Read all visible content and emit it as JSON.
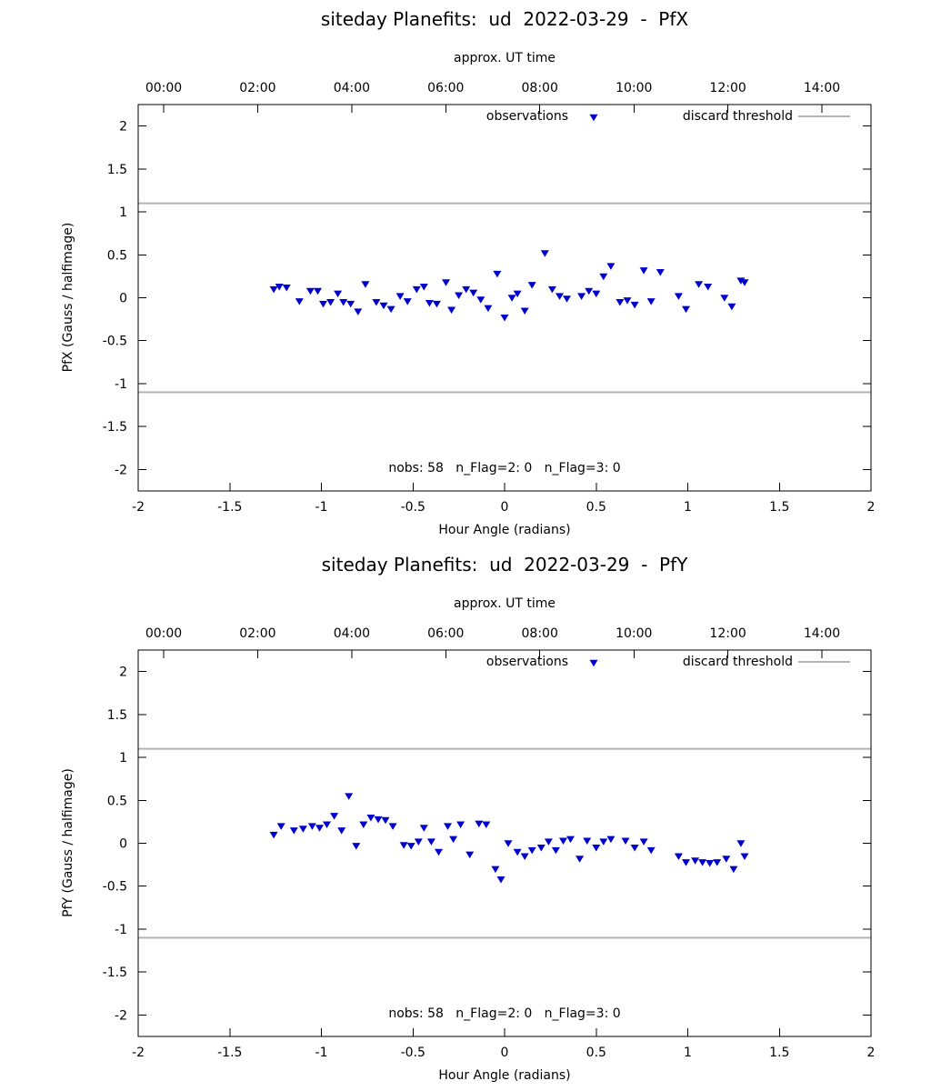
{
  "chart_data": [
    {
      "type": "scatter",
      "title": "siteday Planefits:  ud  2022-03-29  -  PfX",
      "top_axis_label": "approx. UT time",
      "xlabel": "Hour Angle (radians)",
      "ylabel": "PfX (Gauss / halfimage)",
      "legend": {
        "observations_label": "observations",
        "threshold_label": "discard threshold",
        "position": "top-right-inside"
      },
      "stats_text": "nobs: 58   n_Flag=2: 0   n_Flag=3: 0",
      "nobs": 58,
      "n_flag2": 0,
      "n_flag3": 0,
      "xlim": [
        -2,
        2
      ],
      "ylim": [
        -2.25,
        2.25
      ],
      "x_ticks": [
        -2,
        -1.5,
        -1,
        -0.5,
        0,
        0.5,
        1,
        1.5,
        2
      ],
      "y_ticks": [
        -2,
        -1.5,
        -1,
        -0.5,
        0,
        0.5,
        1,
        1.5,
        2
      ],
      "top_ticks": [
        {
          "label": "00:00",
          "x": -1.861
        },
        {
          "label": "02:00",
          "x": -1.348
        },
        {
          "label": "04:00",
          "x": -0.834
        },
        {
          "label": "06:00",
          "x": -0.321
        },
        {
          "label": "08:00",
          "x": 0.192
        },
        {
          "label": "10:00",
          "x": 0.706
        },
        {
          "label": "12:00",
          "x": 1.219
        },
        {
          "label": "14:00",
          "x": 1.732
        }
      ],
      "thresholds": [
        1.1,
        -1.1
      ],
      "marker_color": "#0000cd",
      "threshold_color": "#b3b3b3",
      "points": [
        [
          -1.26,
          0.1
        ],
        [
          -1.23,
          0.13
        ],
        [
          -1.19,
          0.12
        ],
        [
          -1.12,
          -0.04
        ],
        [
          -1.06,
          0.08
        ],
        [
          -1.02,
          0.08
        ],
        [
          -0.99,
          -0.07
        ],
        [
          -0.95,
          -0.05
        ],
        [
          -0.91,
          0.05
        ],
        [
          -0.88,
          -0.05
        ],
        [
          -0.84,
          -0.07
        ],
        [
          -0.8,
          -0.16
        ],
        [
          -0.76,
          0.16
        ],
        [
          -0.7,
          -0.05
        ],
        [
          -0.66,
          -0.09
        ],
        [
          -0.62,
          -0.13
        ],
        [
          -0.57,
          0.02
        ],
        [
          -0.53,
          -0.04
        ],
        [
          -0.48,
          0.1
        ],
        [
          -0.44,
          0.13
        ],
        [
          -0.41,
          -0.06
        ],
        [
          -0.37,
          -0.07
        ],
        [
          -0.32,
          0.18
        ],
        [
          -0.29,
          -0.14
        ],
        [
          -0.25,
          0.03
        ],
        [
          -0.21,
          0.1
        ],
        [
          -0.17,
          0.06
        ],
        [
          -0.13,
          -0.02
        ],
        [
          -0.09,
          -0.12
        ],
        [
          -0.04,
          0.28
        ],
        [
          0.0,
          -0.23
        ],
        [
          0.04,
          0.0
        ],
        [
          0.07,
          0.05
        ],
        [
          0.11,
          -0.15
        ],
        [
          0.15,
          0.15
        ],
        [
          0.22,
          0.52
        ],
        [
          0.26,
          0.1
        ],
        [
          0.3,
          0.02
        ],
        [
          0.34,
          -0.01
        ],
        [
          0.42,
          0.02
        ],
        [
          0.46,
          0.08
        ],
        [
          0.5,
          0.05
        ],
        [
          0.54,
          0.25
        ],
        [
          0.58,
          0.37
        ],
        [
          0.63,
          -0.05
        ],
        [
          0.67,
          -0.03
        ],
        [
          0.71,
          -0.08
        ],
        [
          0.76,
          0.32
        ],
        [
          0.8,
          -0.04
        ],
        [
          0.85,
          0.3
        ],
        [
          0.95,
          0.02
        ],
        [
          0.99,
          -0.13
        ],
        [
          1.06,
          0.16
        ],
        [
          1.11,
          0.13
        ],
        [
          1.2,
          0.0
        ],
        [
          1.24,
          -0.1
        ],
        [
          1.29,
          0.2
        ],
        [
          1.31,
          0.18
        ]
      ]
    },
    {
      "type": "scatter",
      "title": "siteday Planefits:  ud  2022-03-29  -  PfY",
      "top_axis_label": "approx. UT time",
      "xlabel": "Hour Angle (radians)",
      "ylabel": "PfY (Gauss / halfimage)",
      "legend": {
        "observations_label": "observations",
        "threshold_label": "discard threshold",
        "position": "top-right-inside"
      },
      "stats_text": "nobs: 58   n_Flag=2: 0   n_Flag=3: 0",
      "nobs": 58,
      "n_flag2": 0,
      "n_flag3": 0,
      "xlim": [
        -2,
        2
      ],
      "ylim": [
        -2.25,
        2.25
      ],
      "x_ticks": [
        -2,
        -1.5,
        -1,
        -0.5,
        0,
        0.5,
        1,
        1.5,
        2
      ],
      "y_ticks": [
        -2,
        -1.5,
        -1,
        -0.5,
        0,
        0.5,
        1,
        1.5,
        2
      ],
      "top_ticks": [
        {
          "label": "00:00",
          "x": -1.861
        },
        {
          "label": "02:00",
          "x": -1.348
        },
        {
          "label": "04:00",
          "x": -0.834
        },
        {
          "label": "06:00",
          "x": -0.321
        },
        {
          "label": "08:00",
          "x": 0.192
        },
        {
          "label": "10:00",
          "x": 0.706
        },
        {
          "label": "12:00",
          "x": 1.219
        },
        {
          "label": "14:00",
          "x": 1.732
        }
      ],
      "thresholds": [
        1.1,
        -1.1
      ],
      "marker_color": "#0000cd",
      "threshold_color": "#b3b3b3",
      "points": [
        [
          -1.26,
          0.1
        ],
        [
          -1.22,
          0.2
        ],
        [
          -1.15,
          0.15
        ],
        [
          -1.1,
          0.17
        ],
        [
          -1.05,
          0.2
        ],
        [
          -1.01,
          0.18
        ],
        [
          -0.97,
          0.22
        ],
        [
          -0.93,
          0.32
        ],
        [
          -0.89,
          0.15
        ],
        [
          -0.85,
          0.55
        ],
        [
          -0.81,
          -0.03
        ],
        [
          -0.77,
          0.22
        ],
        [
          -0.73,
          0.3
        ],
        [
          -0.69,
          0.28
        ],
        [
          -0.65,
          0.27
        ],
        [
          -0.61,
          0.2
        ],
        [
          -0.55,
          -0.02
        ],
        [
          -0.51,
          -0.03
        ],
        [
          -0.47,
          0.02
        ],
        [
          -0.44,
          0.18
        ],
        [
          -0.4,
          0.02
        ],
        [
          -0.36,
          -0.1
        ],
        [
          -0.31,
          0.2
        ],
        [
          -0.28,
          0.05
        ],
        [
          -0.24,
          0.22
        ],
        [
          -0.19,
          -0.13
        ],
        [
          -0.14,
          0.23
        ],
        [
          -0.1,
          0.22
        ],
        [
          -0.05,
          -0.3
        ],
        [
          -0.02,
          -0.42
        ],
        [
          0.02,
          0.0
        ],
        [
          0.07,
          -0.1
        ],
        [
          0.11,
          -0.15
        ],
        [
          0.15,
          -0.08
        ],
        [
          0.2,
          -0.05
        ],
        [
          0.24,
          0.02
        ],
        [
          0.28,
          -0.08
        ],
        [
          0.32,
          0.03
        ],
        [
          0.36,
          0.05
        ],
        [
          0.41,
          -0.18
        ],
        [
          0.45,
          0.03
        ],
        [
          0.5,
          -0.05
        ],
        [
          0.54,
          0.02
        ],
        [
          0.58,
          0.05
        ],
        [
          0.66,
          0.03
        ],
        [
          0.71,
          -0.05
        ],
        [
          0.76,
          0.02
        ],
        [
          0.8,
          -0.08
        ],
        [
          0.95,
          -0.15
        ],
        [
          0.99,
          -0.22
        ],
        [
          1.04,
          -0.2
        ],
        [
          1.08,
          -0.22
        ],
        [
          1.12,
          -0.23
        ],
        [
          1.16,
          -0.22
        ],
        [
          1.21,
          -0.18
        ],
        [
          1.25,
          -0.3
        ],
        [
          1.29,
          0.0
        ],
        [
          1.31,
          -0.15
        ]
      ]
    }
  ]
}
